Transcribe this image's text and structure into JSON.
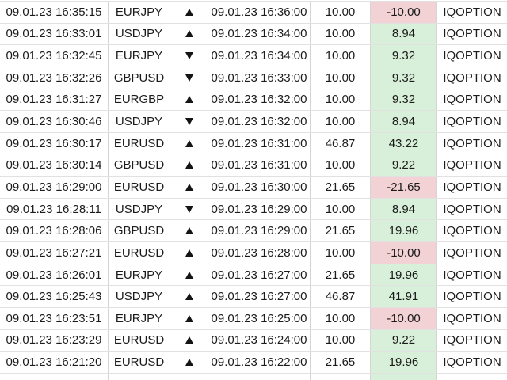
{
  "colors": {
    "win_bg": "#d8efd9",
    "loss_bg": "#f2d2d5",
    "grid_vertical": "#d4d4d4",
    "grid_horizontal": "#e1e1e1",
    "text": "#1b1b1b"
  },
  "table": {
    "columns": [
      "open_time",
      "symbol",
      "direction",
      "close_time",
      "amount",
      "profit",
      "broker"
    ],
    "rows": [
      {
        "open_time": "09.01.23 16:35:15",
        "symbol": "EURJPY",
        "direction": "up",
        "close_time": "09.01.23 16:36:00",
        "amount": "10.00",
        "profit": "-10.00",
        "result": "loss",
        "broker": "IQOPTION"
      },
      {
        "open_time": "09.01.23 16:33:01",
        "symbol": "USDJPY",
        "direction": "up",
        "close_time": "09.01.23 16:34:00",
        "amount": "10.00",
        "profit": "8.94",
        "result": "win",
        "broker": "IQOPTION"
      },
      {
        "open_time": "09.01.23 16:32:45",
        "symbol": "EURJPY",
        "direction": "down",
        "close_time": "09.01.23 16:34:00",
        "amount": "10.00",
        "profit": "9.32",
        "result": "win",
        "broker": "IQOPTION"
      },
      {
        "open_time": "09.01.23 16:32:26",
        "symbol": "GBPUSD",
        "direction": "down",
        "close_time": "09.01.23 16:33:00",
        "amount": "10.00",
        "profit": "9.32",
        "result": "win",
        "broker": "IQOPTION"
      },
      {
        "open_time": "09.01.23 16:31:27",
        "symbol": "EURGBP",
        "direction": "up",
        "close_time": "09.01.23 16:32:00",
        "amount": "10.00",
        "profit": "9.32",
        "result": "win",
        "broker": "IQOPTION"
      },
      {
        "open_time": "09.01.23 16:30:46",
        "symbol": "USDJPY",
        "direction": "down",
        "close_time": "09.01.23 16:32:00",
        "amount": "10.00",
        "profit": "8.94",
        "result": "win",
        "broker": "IQOPTION"
      },
      {
        "open_time": "09.01.23 16:30:17",
        "symbol": "EURUSD",
        "direction": "up",
        "close_time": "09.01.23 16:31:00",
        "amount": "46.87",
        "profit": "43.22",
        "result": "win",
        "broker": "IQOPTION"
      },
      {
        "open_time": "09.01.23 16:30:14",
        "symbol": "GBPUSD",
        "direction": "up",
        "close_time": "09.01.23 16:31:00",
        "amount": "10.00",
        "profit": "9.22",
        "result": "win",
        "broker": "IQOPTION"
      },
      {
        "open_time": "09.01.23 16:29:00",
        "symbol": "EURUSD",
        "direction": "up",
        "close_time": "09.01.23 16:30:00",
        "amount": "21.65",
        "profit": "-21.65",
        "result": "loss",
        "broker": "IQOPTION"
      },
      {
        "open_time": "09.01.23 16:28:11",
        "symbol": "USDJPY",
        "direction": "down",
        "close_time": "09.01.23 16:29:00",
        "amount": "10.00",
        "profit": "8.94",
        "result": "win",
        "broker": "IQOPTION"
      },
      {
        "open_time": "09.01.23 16:28:06",
        "symbol": "GBPUSD",
        "direction": "up",
        "close_time": "09.01.23 16:29:00",
        "amount": "21.65",
        "profit": "19.96",
        "result": "win",
        "broker": "IQOPTION"
      },
      {
        "open_time": "09.01.23 16:27:21",
        "symbol": "EURUSD",
        "direction": "up",
        "close_time": "09.01.23 16:28:00",
        "amount": "10.00",
        "profit": "-10.00",
        "result": "loss",
        "broker": "IQOPTION"
      },
      {
        "open_time": "09.01.23 16:26:01",
        "symbol": "EURJPY",
        "direction": "up",
        "close_time": "09.01.23 16:27:00",
        "amount": "21.65",
        "profit": "19.96",
        "result": "win",
        "broker": "IQOPTION"
      },
      {
        "open_time": "09.01.23 16:25:43",
        "symbol": "USDJPY",
        "direction": "up",
        "close_time": "09.01.23 16:27:00",
        "amount": "46.87",
        "profit": "41.91",
        "result": "win",
        "broker": "IQOPTION"
      },
      {
        "open_time": "09.01.23 16:23:51",
        "symbol": "EURJPY",
        "direction": "up",
        "close_time": "09.01.23 16:25:00",
        "amount": "10.00",
        "profit": "-10.00",
        "result": "loss",
        "broker": "IQOPTION"
      },
      {
        "open_time": "09.01.23 16:23:29",
        "symbol": "EURUSD",
        "direction": "up",
        "close_time": "09.01.23 16:24:00",
        "amount": "10.00",
        "profit": "9.22",
        "result": "win",
        "broker": "IQOPTION"
      },
      {
        "open_time": "09.01.23 16:21:20",
        "symbol": "EURUSD",
        "direction": "up",
        "close_time": "09.01.23 16:22:00",
        "amount": "21.65",
        "profit": "19.96",
        "result": "win",
        "broker": "IQOPTION"
      },
      {
        "open_time": "",
        "symbol": "",
        "direction": "",
        "close_time": "",
        "amount": "",
        "profit": "",
        "result": "win",
        "broker": ""
      }
    ]
  }
}
